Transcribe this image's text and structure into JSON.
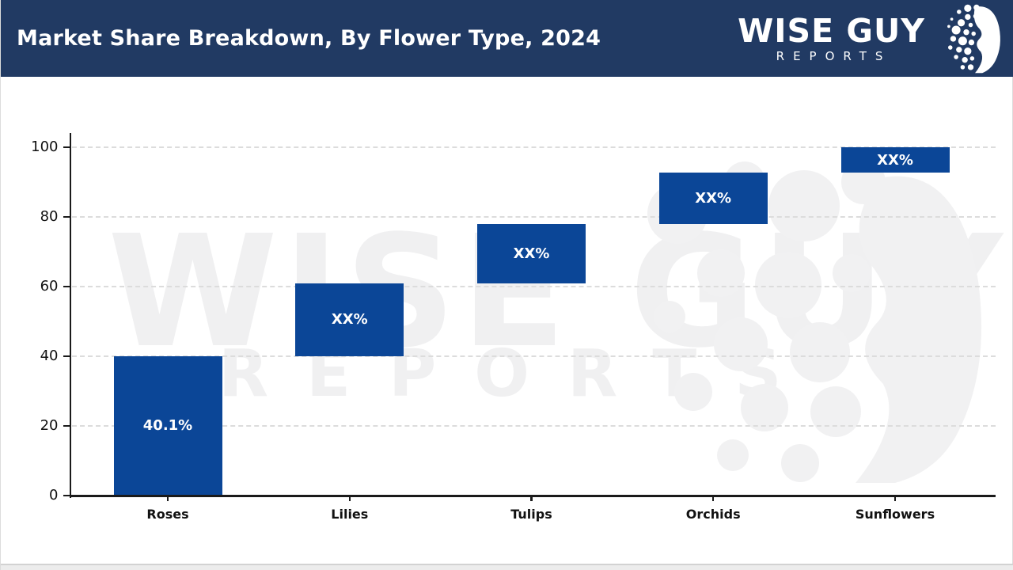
{
  "header": {
    "title": "Market Share Breakdown, By Flower Type, 2024",
    "background_color": "#213a63",
    "logo_line1": "WISE GUY",
    "logo_line2": "REPORTS"
  },
  "watermark": {
    "line1": "WISE GUY",
    "line2": "REPORTS"
  },
  "chart_data": {
    "type": "bar",
    "subtype": "waterfall",
    "title": "Market Share Breakdown, By Flower Type, 2024",
    "categories": [
      "Roses",
      "Lilies",
      "Tulips",
      "Orchids",
      "Sunflowers"
    ],
    "segments": [
      {
        "category": "Roses",
        "start": 0,
        "end": 40.1,
        "label": "40.1%"
      },
      {
        "category": "Lilies",
        "start": 40.1,
        "end": 61,
        "label": "XX%"
      },
      {
        "category": "Tulips",
        "start": 61,
        "end": 78,
        "label": "XX%"
      },
      {
        "category": "Orchids",
        "start": 78,
        "end": 92.7,
        "label": "XX%"
      },
      {
        "category": "Sunflowers",
        "start": 92.7,
        "end": 100,
        "label": "XX%"
      }
    ],
    "y_ticks": [
      0,
      20,
      40,
      60,
      80,
      100
    ],
    "ylim": [
      0,
      104
    ],
    "xlabel": "",
    "ylabel": "",
    "legend": "none",
    "grid": "horizontal-dashed",
    "bar_color": "#0b4697",
    "label_color": "#ffffff",
    "gridline_color": "#dcdcdc",
    "axis_color": "#1a1a1a"
  }
}
